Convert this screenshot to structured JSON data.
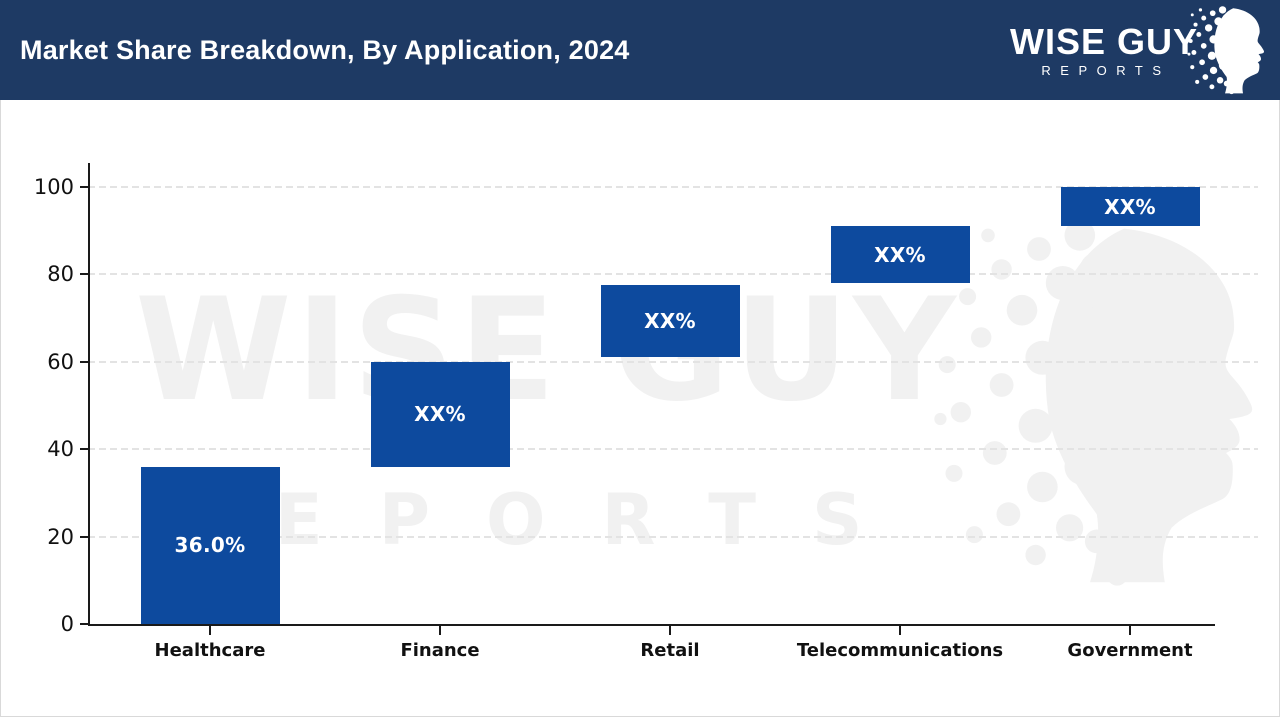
{
  "header": {
    "title": "Market Share Breakdown, By Application, 2024",
    "bg_color": "#1e3a64",
    "logo": {
      "line1": "WISE GUY",
      "line2": "REPORTS"
    }
  },
  "watermark": {
    "line1": "WISE GUY",
    "line2": "REPORTS",
    "color": "#f1f1f1"
  },
  "chart_data": {
    "type": "bar",
    "subtype": "waterfall",
    "title": "Market Share Breakdown, By Application, 2024",
    "categories": [
      "Healthcare",
      "Finance",
      "Retail",
      "Telecommunications",
      "Government"
    ],
    "segments": [
      {
        "category": "Healthcare",
        "start": 0,
        "end": 36,
        "label": "36.0%"
      },
      {
        "category": "Finance",
        "start": 36,
        "end": 60,
        "label": "XX%"
      },
      {
        "category": "Retail",
        "start": 61,
        "end": 77.5,
        "label": "XX%"
      },
      {
        "category": "Telecommunications",
        "start": 78,
        "end": 91,
        "label": "XX%"
      },
      {
        "category": "Government",
        "start": 91,
        "end": 100,
        "label": "XX%"
      }
    ],
    "y_ticks": [
      0,
      20,
      40,
      60,
      80,
      100
    ],
    "ylim": [
      0,
      105
    ],
    "xlabel": "",
    "ylabel": "",
    "grid": "horizontal-dashed",
    "legend": "none",
    "bar_color": "#0d4a9e",
    "bar_label_color": "#ffffff",
    "axis_color": "#1a1a1a",
    "grid_color": "#e3e3e3"
  }
}
